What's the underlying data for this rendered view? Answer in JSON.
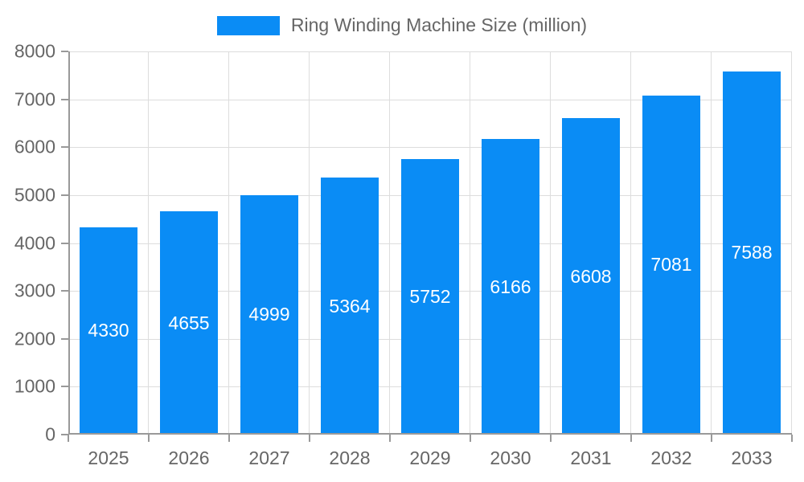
{
  "chart_data": {
    "type": "bar",
    "title": "Ring Winding Machine Size (million)",
    "legend": "Ring Winding Machine Size (million)",
    "categories": [
      "2025",
      "2026",
      "2027",
      "2028",
      "2029",
      "2030",
      "2031",
      "2032",
      "2033"
    ],
    "values": [
      4330,
      4655,
      4999,
      5364,
      5752,
      6166,
      6608,
      7081,
      7588
    ],
    "xlabel": "",
    "ylabel": "",
    "ylim": [
      0,
      8000
    ],
    "ytick_step": 1000,
    "yticks": [
      "0",
      "1000",
      "2000",
      "3000",
      "4000",
      "5000",
      "6000",
      "7000",
      "8000"
    ],
    "grid": true,
    "legend_position": "top",
    "bar_color": "#0a8cf5",
    "value_label_color": "#ffffff",
    "axis_color": "#999999",
    "grid_color": "#dddddd",
    "text_color": "#666666"
  }
}
